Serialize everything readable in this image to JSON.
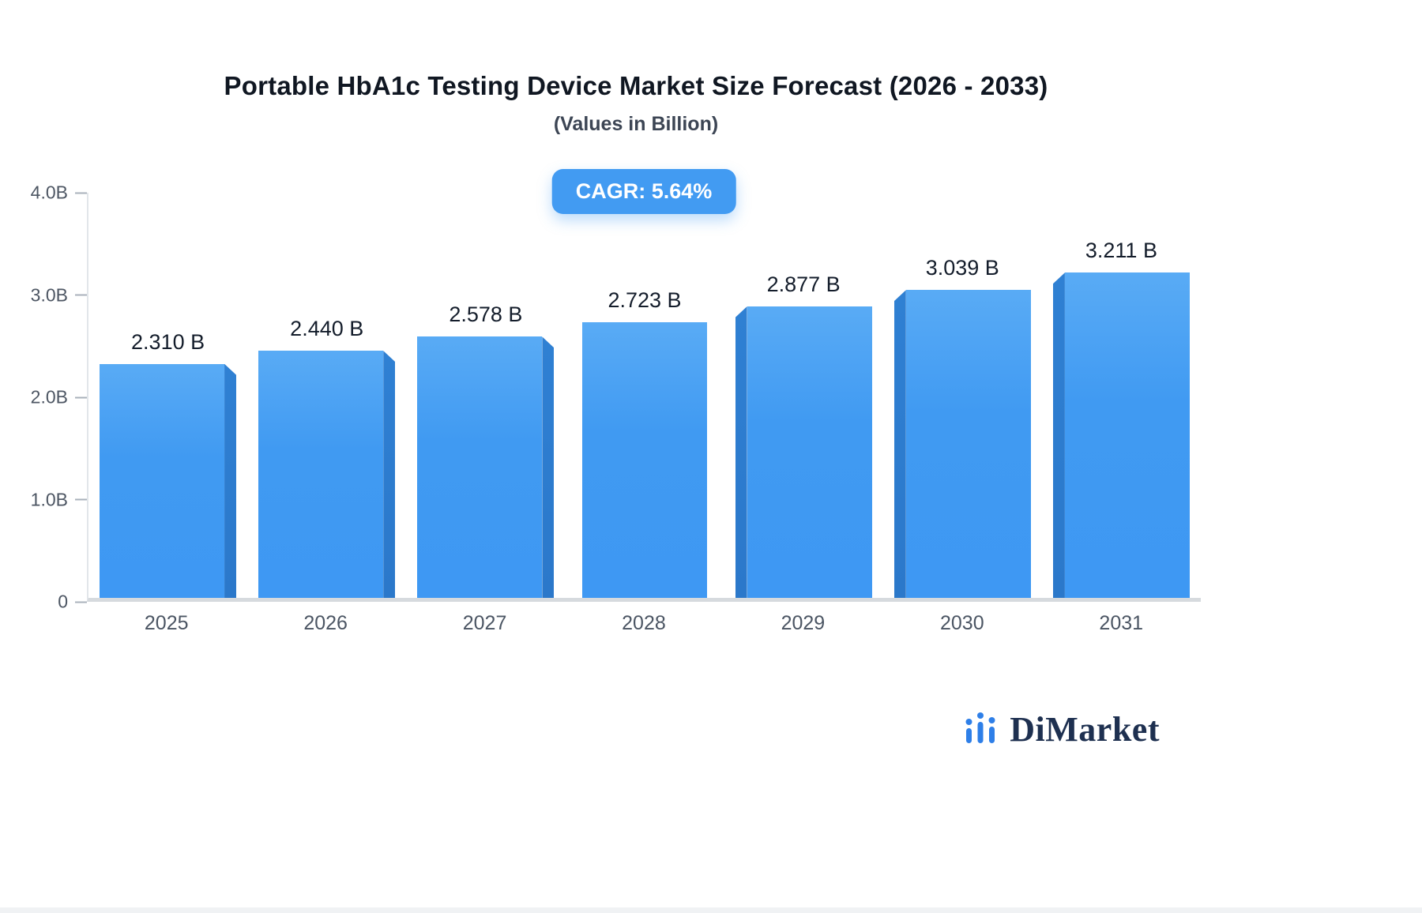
{
  "chart_data": {
    "type": "bar",
    "title": "Portable HbA1c Testing Device Market Size Forecast (2026 - 2033)",
    "subtitle": "(Values in Billion)",
    "cagr_label": "CAGR: 5.64%",
    "categories": [
      "2025",
      "2026",
      "2027",
      "2028",
      "2029",
      "2030",
      "2031"
    ],
    "values": [
      2.31,
      2.44,
      2.578,
      2.723,
      2.877,
      3.039,
      3.211
    ],
    "value_labels": [
      "2.310 B",
      "2.440 B",
      "2.578 B",
      "2.723 B",
      "2.877 B",
      "3.039 B",
      "3.211 B"
    ],
    "xlabel": "",
    "ylabel": "",
    "ylim": [
      0,
      4.0
    ],
    "ytick_values": [
      4.0,
      3.0,
      2.0,
      1.0,
      0
    ],
    "ytick_labels": [
      "4.0B",
      "3.0B",
      "2.0B",
      "1.0B",
      "0"
    ],
    "grid": false,
    "legend": "none",
    "bar_color": "#3E98F3",
    "bar_side_color": "#2B78CA",
    "badge_color": "#429BF2"
  },
  "branding": {
    "logo_text": "DiMarket",
    "logo_icon": "bar-chart-icon",
    "logo_color": "#2E7FE8"
  }
}
